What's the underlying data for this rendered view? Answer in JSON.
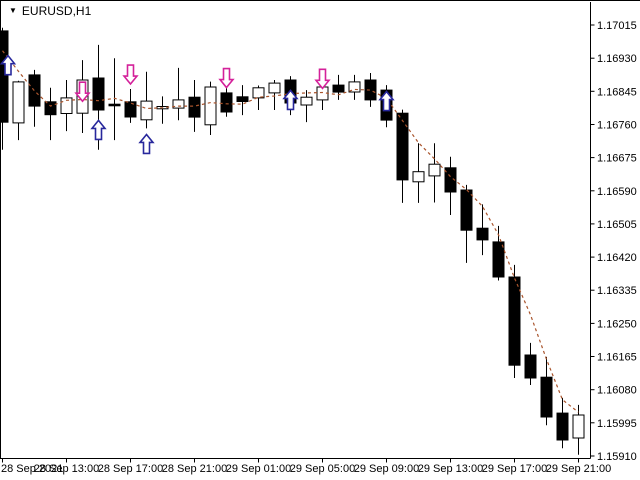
{
  "header": {
    "symbol_label": "EURUSD,H1",
    "dropdown_icon": "▼"
  },
  "chart_data": {
    "type": "candlestick",
    "symbol": "EURUSD",
    "timeframe": "H1",
    "legend_position": "none",
    "grid": false,
    "y_axis": {
      "side": "right",
      "ticks": [
        "1.17015",
        "1.16930",
        "1.16845",
        "1.16760",
        "1.16675",
        "1.16590",
        "1.16505",
        "1.16420",
        "1.16335",
        "1.16250",
        "1.16165",
        "1.16080",
        "1.15995",
        "1.15910"
      ],
      "range": [
        1.1591,
        1.17015
      ]
    },
    "x_axis": {
      "labels": [
        {
          "text": "28 Sep 2021",
          "candle": 0
        },
        {
          "text": "28 Sep 13:00",
          "candle": 4
        },
        {
          "text": "28 Sep 17:00",
          "candle": 8
        },
        {
          "text": "28 Sep 21:00",
          "candle": 12
        },
        {
          "text": "29 Sep 01:00",
          "candle": 16
        },
        {
          "text": "29 Sep 05:00",
          "candle": 20
        },
        {
          "text": "29 Sep 09:00",
          "candle": 24
        },
        {
          "text": "29 Sep 13:00",
          "candle": 28
        },
        {
          "text": "29 Sep 17:00",
          "candle": 32
        },
        {
          "text": "29 Sep 21:00",
          "candle": 36
        }
      ]
    },
    "candles": [
      {
        "time": "28 Sep 09:00",
        "o": 1.17,
        "h": 1.17008,
        "l": 1.16695,
        "c": 1.16766
      },
      {
        "time": "28 Sep 10:00",
        "o": 1.16764,
        "h": 1.16872,
        "l": 1.1672,
        "c": 1.16869
      },
      {
        "time": "28 Sep 11:00",
        "o": 1.16887,
        "h": 1.169,
        "l": 1.16754,
        "c": 1.16807
      },
      {
        "time": "28 Sep 12:00",
        "o": 1.16818,
        "h": 1.16854,
        "l": 1.1672,
        "c": 1.16785
      },
      {
        "time": "28 Sep 13:00",
        "o": 1.16788,
        "h": 1.16874,
        "l": 1.16743,
        "c": 1.16828
      },
      {
        "time": "28 Sep 14:00",
        "o": 1.16789,
        "h": 1.16925,
        "l": 1.16738,
        "c": 1.16874
      },
      {
        "time": "28 Sep 15:00",
        "o": 1.16879,
        "h": 1.16964,
        "l": 1.16695,
        "c": 1.16797
      },
      {
        "time": "28 Sep 16:00",
        "o": 1.16812,
        "h": 1.1693,
        "l": 1.1672,
        "c": 1.16808
      },
      {
        "time": "28 Sep 17:00",
        "o": 1.16818,
        "h": 1.16851,
        "l": 1.16764,
        "c": 1.16779
      },
      {
        "time": "28 Sep 18:00",
        "o": 1.16772,
        "h": 1.16895,
        "l": 1.1675,
        "c": 1.1682
      },
      {
        "time": "28 Sep 19:00",
        "o": 1.168,
        "h": 1.16832,
        "l": 1.16762,
        "c": 1.16806
      },
      {
        "time": "28 Sep 20:00",
        "o": 1.16802,
        "h": 1.16905,
        "l": 1.16771,
        "c": 1.16823
      },
      {
        "time": "28 Sep 21:00",
        "o": 1.1683,
        "h": 1.16874,
        "l": 1.16741,
        "c": 1.16779
      },
      {
        "time": "28 Sep 22:00",
        "o": 1.16759,
        "h": 1.1687,
        "l": 1.16733,
        "c": 1.16856
      },
      {
        "time": "28 Sep 23:00",
        "o": 1.16841,
        "h": 1.16862,
        "l": 1.1678,
        "c": 1.16792
      },
      {
        "time": "29 Sep 00:00",
        "o": 1.16831,
        "h": 1.16861,
        "l": 1.16784,
        "c": 1.16819
      },
      {
        "time": "29 Sep 01:00",
        "o": 1.16828,
        "h": 1.1686,
        "l": 1.16797,
        "c": 1.16854
      },
      {
        "time": "29 Sep 02:00",
        "o": 1.16841,
        "h": 1.16874,
        "l": 1.16797,
        "c": 1.16866
      },
      {
        "time": "29 Sep 03:00",
        "o": 1.16874,
        "h": 1.16884,
        "l": 1.16784,
        "c": 1.16815
      },
      {
        "time": "29 Sep 04:00",
        "o": 1.1681,
        "h": 1.16848,
        "l": 1.16766,
        "c": 1.1683
      },
      {
        "time": "29 Sep 05:00",
        "o": 1.16823,
        "h": 1.16862,
        "l": 1.16797,
        "c": 1.16856
      },
      {
        "time": "29 Sep 06:00",
        "o": 1.16861,
        "h": 1.16887,
        "l": 1.16823,
        "c": 1.16843
      },
      {
        "time": "29 Sep 07:00",
        "o": 1.16843,
        "h": 1.16887,
        "l": 1.16823,
        "c": 1.16869
      },
      {
        "time": "29 Sep 08:00",
        "o": 1.16874,
        "h": 1.16892,
        "l": 1.16805,
        "c": 1.16823
      },
      {
        "time": "29 Sep 09:00",
        "o": 1.16848,
        "h": 1.16861,
        "l": 1.16753,
        "c": 1.16771
      },
      {
        "time": "29 Sep 10:00",
        "o": 1.16789,
        "h": 1.16798,
        "l": 1.16559,
        "c": 1.16618
      },
      {
        "time": "29 Sep 11:00",
        "o": 1.16613,
        "h": 1.16712,
        "l": 1.16559,
        "c": 1.16639
      },
      {
        "time": "29 Sep 12:00",
        "o": 1.16628,
        "h": 1.16712,
        "l": 1.1656,
        "c": 1.16658
      },
      {
        "time": "29 Sep 13:00",
        "o": 1.16649,
        "h": 1.16677,
        "l": 1.16528,
        "c": 1.16587
      },
      {
        "time": "29 Sep 14:00",
        "o": 1.16592,
        "h": 1.16605,
        "l": 1.16405,
        "c": 1.16489
      },
      {
        "time": "29 Sep 15:00",
        "o": 1.16494,
        "h": 1.16555,
        "l": 1.16425,
        "c": 1.16464
      },
      {
        "time": "29 Sep 16:00",
        "o": 1.16459,
        "h": 1.165,
        "l": 1.1636,
        "c": 1.16369
      },
      {
        "time": "29 Sep 17:00",
        "o": 1.16369,
        "h": 1.164,
        "l": 1.1611,
        "c": 1.16143
      },
      {
        "time": "29 Sep 18:00",
        "o": 1.16169,
        "h": 1.162,
        "l": 1.16092,
        "c": 1.1611
      },
      {
        "time": "29 Sep 19:00",
        "o": 1.16112,
        "h": 1.16164,
        "l": 1.15989,
        "c": 1.1601
      },
      {
        "time": "29 Sep 20:00",
        "o": 1.1602,
        "h": 1.16059,
        "l": 1.1593,
        "c": 1.15951
      },
      {
        "time": "29 Sep 21:00",
        "o": 1.15956,
        "h": 1.16041,
        "l": 1.15913,
        "c": 1.16015
      }
    ],
    "ma_line": {
      "style": "dashed",
      "color": "#a9542c",
      "values": [
        1.16949,
        1.16896,
        1.16846,
        1.16807,
        1.16822,
        1.16824,
        1.16821,
        1.16827,
        1.16815,
        1.16801,
        1.16803,
        1.16807,
        1.16807,
        1.16816,
        1.16813,
        1.16812,
        1.1683,
        1.16833,
        1.16839,
        1.16841,
        1.16842,
        1.16836,
        1.1685,
        1.16848,
        1.16827,
        1.1677,
        1.16713,
        1.16672,
        1.16626,
        1.16593,
        1.1655,
        1.16477,
        1.16366,
        1.16272,
        1.16158,
        1.16054,
        1.16022
      ]
    },
    "arrows": [
      {
        "candle": 0,
        "dir": "up",
        "price": 1.16912
      },
      {
        "candle": 5,
        "dir": "down",
        "price": 1.16844
      },
      {
        "candle": 6,
        "dir": "up",
        "price": 1.16746
      },
      {
        "candle": 8,
        "dir": "down",
        "price": 1.16888
      },
      {
        "candle": 9,
        "dir": "up",
        "price": 1.1671
      },
      {
        "candle": 14,
        "dir": "down",
        "price": 1.16879
      },
      {
        "candle": 18,
        "dir": "up",
        "price": 1.16823
      },
      {
        "candle": 20,
        "dir": "down",
        "price": 1.16877
      },
      {
        "candle": 24,
        "dir": "up",
        "price": 1.1682
      }
    ],
    "colors": {
      "background": "#ffffff",
      "axis": "#000000",
      "candle_outline": "#000000",
      "bull_fill": "#ffffff",
      "bear_fill": "#000000",
      "ma_line": "#a9542c",
      "arrow_up": "#28289c",
      "arrow_down": "#d4219a"
    }
  }
}
